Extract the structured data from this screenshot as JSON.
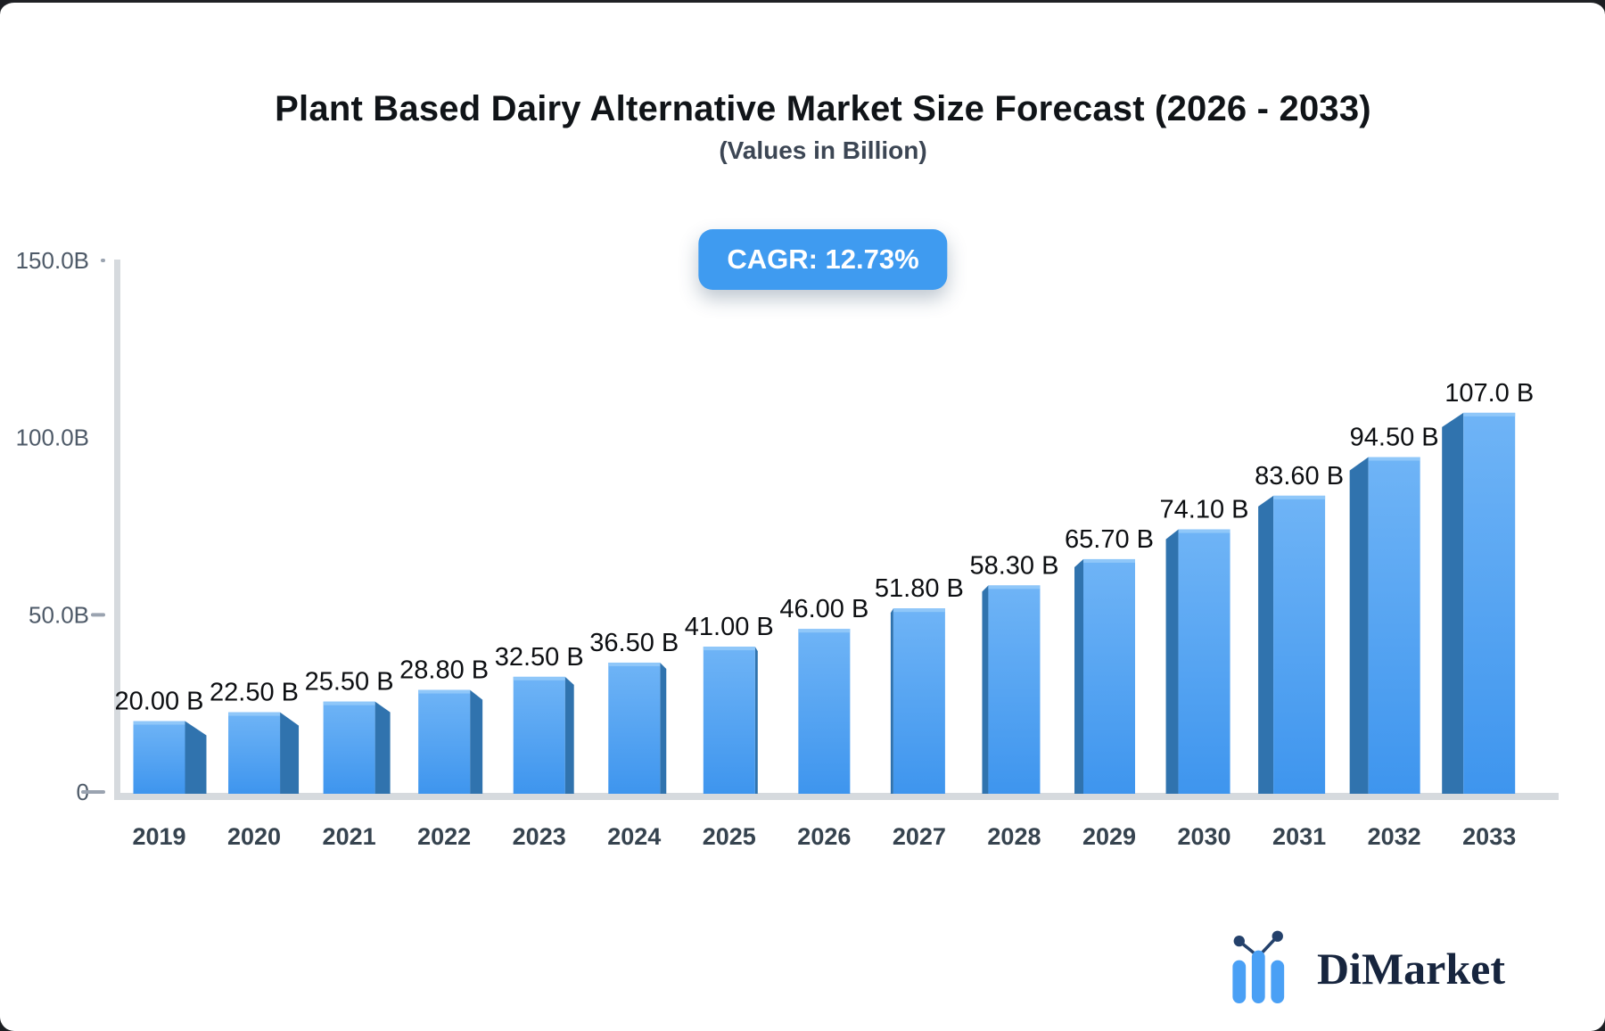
{
  "header": {
    "title": "Plant Based Dairy Alternative Market Size Forecast (2026 - 2033)",
    "subtitle": "(Values in Billion)"
  },
  "badge": {
    "label": "CAGR: 12.73%",
    "bg": "#3f9bf0"
  },
  "chart_data": {
    "type": "bar",
    "title": "Plant Based Dairy Alternative Market Size Forecast (2026 - 2033)",
    "subtitle": "(Values in Billion)",
    "cagr": "12.73%",
    "categories": [
      "2019",
      "2020",
      "2021",
      "2022",
      "2023",
      "2024",
      "2025",
      "2026",
      "2027",
      "2028",
      "2029",
      "2030",
      "2031",
      "2032",
      "2033"
    ],
    "values": [
      20.0,
      22.5,
      25.5,
      28.8,
      32.5,
      36.5,
      41.0,
      46.0,
      51.8,
      58.3,
      65.7,
      74.1,
      83.6,
      94.5,
      107.0
    ],
    "value_labels": [
      "20.00 B",
      "22.50 B",
      "25.50 B",
      "28.80 B",
      "32.50 B",
      "36.50 B",
      "41.00 B",
      "46.00 B",
      "51.80 B",
      "58.30 B",
      "65.70 B",
      "74.10 B",
      "83.60 B",
      "94.50 B",
      "107.0 B"
    ],
    "xlabel": "",
    "ylabel": "",
    "ylim": [
      0,
      150
    ],
    "yticks": [
      {
        "value": 150,
        "label": "150.0B"
      },
      {
        "value": 100,
        "label": "100.0B"
      },
      {
        "value": 50,
        "label": "50.0B"
      },
      {
        "value": 0,
        "label": "0"
      }
    ],
    "grid": false,
    "legend": false,
    "colors": {
      "face_top": "#6fb4f6",
      "face_bottom": "#3e95ee",
      "side": "#3073ae",
      "highlight": "#8fc7f9",
      "axis": "#d6dade",
      "tick_dash": "#9aa3b0",
      "tick_text": "#4e5a68",
      "xlabel_text": "#36434f",
      "value_text": "#0d0f12"
    }
  },
  "logo": {
    "text": "DiMarket",
    "icon": "bar-line-chart-icon",
    "accent": "#4aa0f5",
    "dot_dark": "#24416b",
    "text_color": "#17253e"
  }
}
